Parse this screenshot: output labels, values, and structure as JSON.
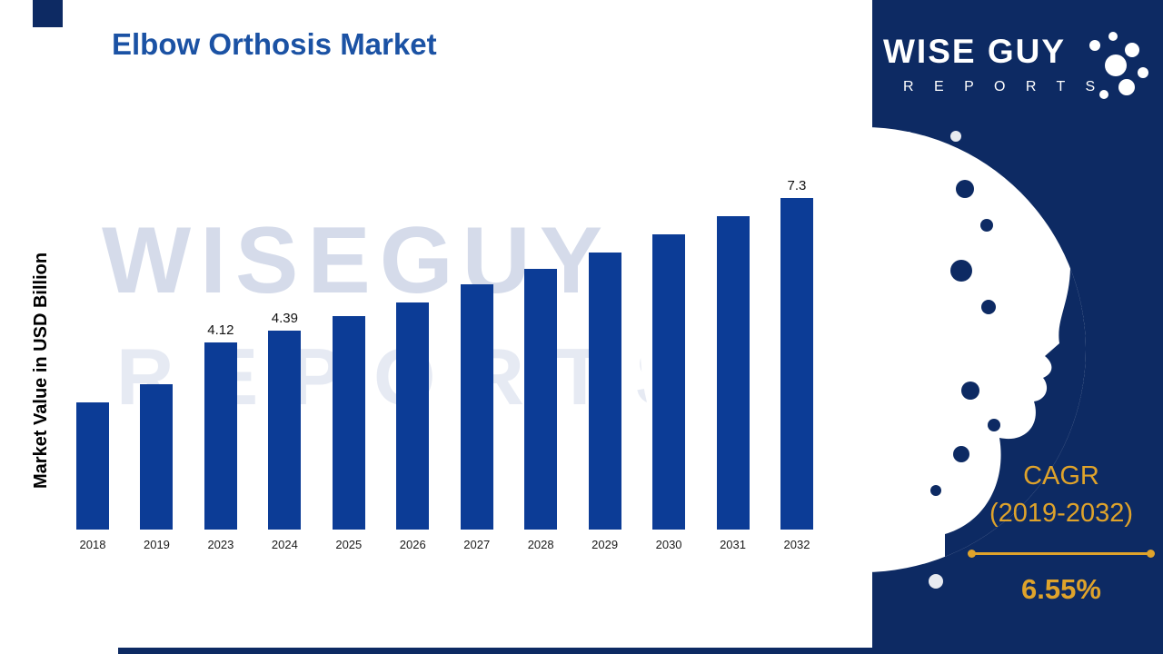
{
  "page": {
    "title": "Elbow Orthosis Market"
  },
  "watermark": {
    "line1": "WISEGUY",
    "line2": "REPORTS"
  },
  "logo": {
    "name_top": "WISE GUY",
    "name_bottom": "R E P O R T S"
  },
  "cagr": {
    "label": "CAGR",
    "range": "(2019-2032)",
    "value": "6.55%"
  },
  "colors": {
    "bar": "#0c3c96",
    "navy": "#0d2a63",
    "gold": "#dfa32b",
    "title_blue": "#1b52a4"
  },
  "chart_data": {
    "type": "bar",
    "title": "Elbow Orthosis Market",
    "xlabel": "",
    "ylabel": "Market Value in USD Billion",
    "categories": [
      "2018",
      "2019",
      "2023",
      "2024",
      "2025",
      "2026",
      "2027",
      "2028",
      "2029",
      "2030",
      "2031",
      "2032"
    ],
    "values": [
      2.8,
      3.2,
      4.12,
      4.39,
      4.7,
      5.0,
      5.4,
      5.75,
      6.1,
      6.5,
      6.9,
      7.3
    ],
    "value_labels": [
      "",
      "",
      "4.12",
      "4.39",
      "",
      "",
      "",
      "",
      "",
      "",
      "",
      "7.3"
    ],
    "ylim": [
      0,
      8
    ],
    "grid": false,
    "legend": "none",
    "unit": "USD Billion"
  }
}
